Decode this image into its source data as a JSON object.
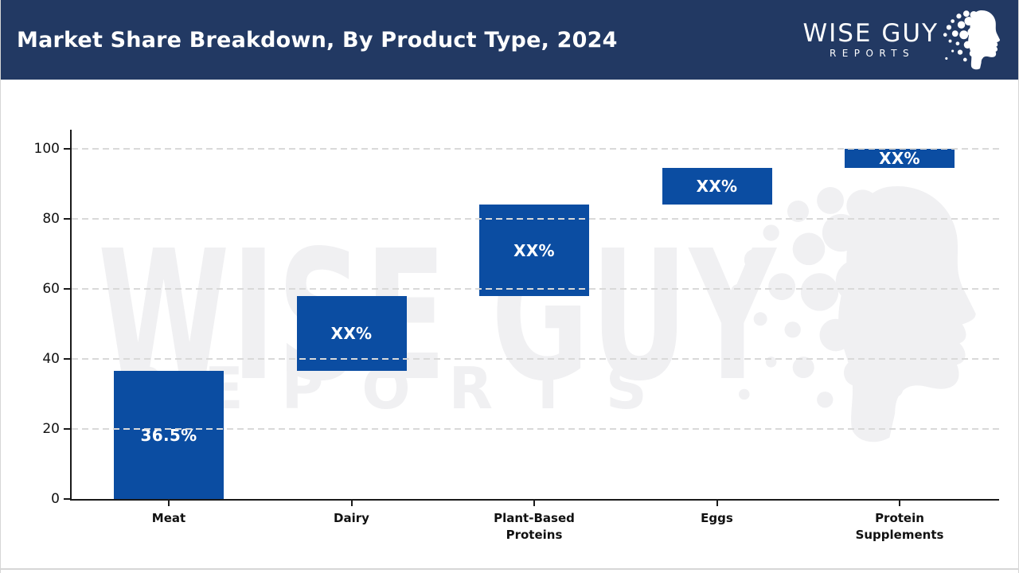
{
  "header": {
    "title": "Market Share Breakdown, By Product Type, 2024",
    "logo": {
      "line1": "WISE GUY",
      "line2": "REPORTS"
    }
  },
  "watermark": {
    "line1": "WISE GUY",
    "line2": "REPORTS"
  },
  "colors": {
    "header_bg": "#223963",
    "bar": "#0b4da2",
    "bar_label": "#ffffff",
    "grid": "#d9d9d9",
    "axis": "#1a1a1a",
    "watermark": "#f0f0f2"
  },
  "chart_data": {
    "type": "bar",
    "subtype": "waterfall",
    "title": "Market Share Breakdown, By Product Type, 2024",
    "categories": [
      "Meat",
      "Dairy",
      "Plant-Based\nProteins",
      "Eggs",
      "Protein\nSupplements"
    ],
    "series": [
      {
        "name": "Market Share (%)",
        "segments": [
          {
            "category": "Meat",
            "start": 0,
            "end": 36.5,
            "label": "36.5%"
          },
          {
            "category": "Dairy",
            "start": 36.5,
            "end": 58,
            "label": "XX%"
          },
          {
            "category": "Plant-Based Proteins",
            "start": 58,
            "end": 84,
            "label": "XX%"
          },
          {
            "category": "Eggs",
            "start": 84,
            "end": 94.5,
            "label": "XX%"
          },
          {
            "category": "Protein Supplements",
            "start": 94.5,
            "end": 100,
            "label": "XX%"
          }
        ]
      }
    ],
    "xlabel": "",
    "ylabel": "",
    "ylim": [
      0,
      100
    ],
    "yticks": [
      0,
      20,
      40,
      60,
      80,
      100
    ],
    "grid": "dashed-horizontal",
    "legend": "none"
  }
}
